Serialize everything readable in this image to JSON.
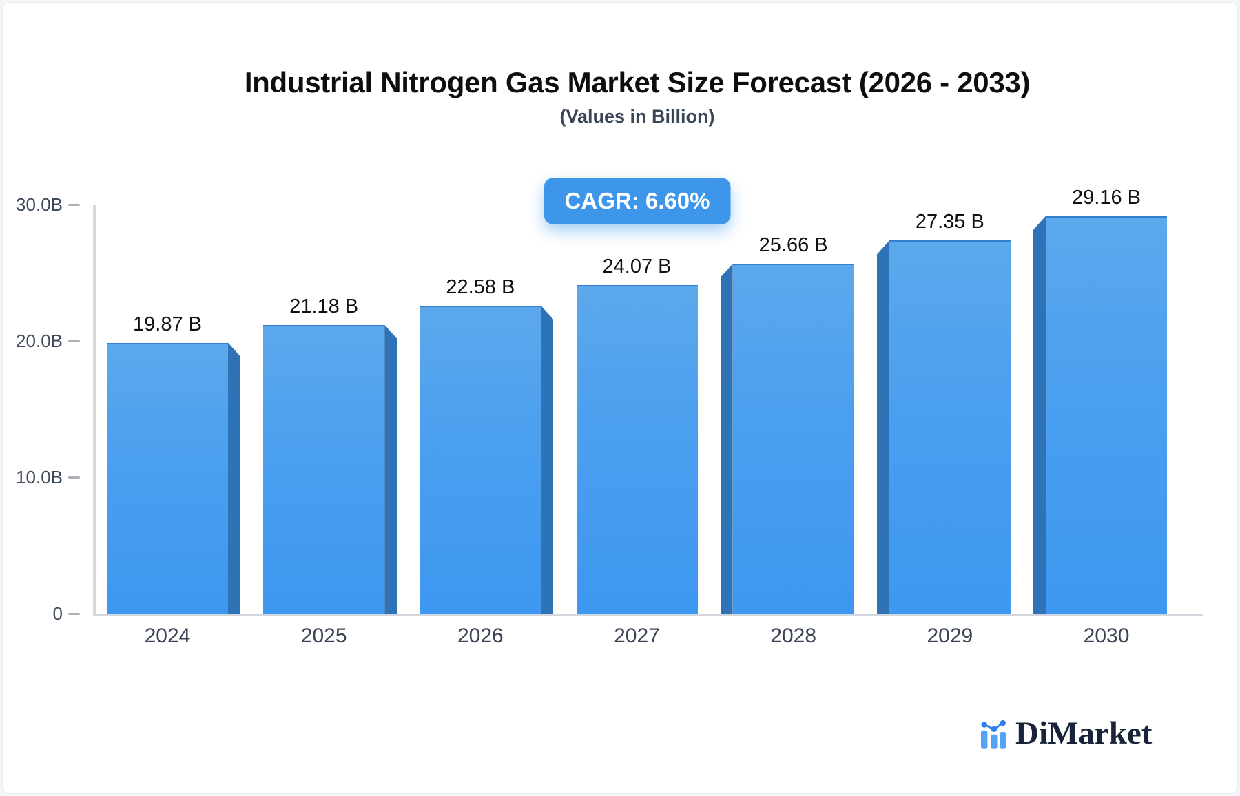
{
  "header": {
    "title": "Industrial Nitrogen Gas Market Size Forecast (2026 - 2033)",
    "subtitle": "(Values in Billion)"
  },
  "badge": {
    "label": "CAGR: 6.60%",
    "background": "#3E96EA",
    "text_color": "#FFFFFF"
  },
  "chart_data": {
    "type": "bar",
    "title": "Industrial Nitrogen Gas Market Size Forecast (2026 - 2033)",
    "subtitle": "(Values in Billion)",
    "categories": [
      "2024",
      "2025",
      "2026",
      "2027",
      "2028",
      "2029",
      "2030"
    ],
    "values": [
      19.87,
      21.18,
      22.58,
      24.07,
      25.66,
      27.35,
      29.16
    ],
    "value_labels": [
      "19.87 B",
      "21.18 B",
      "22.58 B",
      "24.07 B",
      "25.66 B",
      "27.35 B",
      "29.16 B"
    ],
    "cagr_label": "CAGR: 6.60%",
    "unit": "Billion",
    "xlabel": "",
    "ylabel": "",
    "ylim": [
      0,
      30
    ],
    "y_ticks": [
      {
        "value": 30,
        "label": "30.0B"
      },
      {
        "value": 20,
        "label": "20.0B"
      },
      {
        "value": 10,
        "label": "10.0B"
      },
      {
        "value": 0,
        "label": "0"
      }
    ],
    "grid": false,
    "legend": false,
    "bar_effect": "3d-perspective-toward-center",
    "bar_color_top": "#5CA8EC",
    "bar_color_bottom": "#3E97F0",
    "bar_side_color": "#2D73B5"
  },
  "logo": {
    "text": "DiMarket",
    "icon": "bar-line-chart-icon",
    "bar_color": "#54A4F6",
    "line_color": "#2F80EA",
    "text_color": "#182439"
  }
}
